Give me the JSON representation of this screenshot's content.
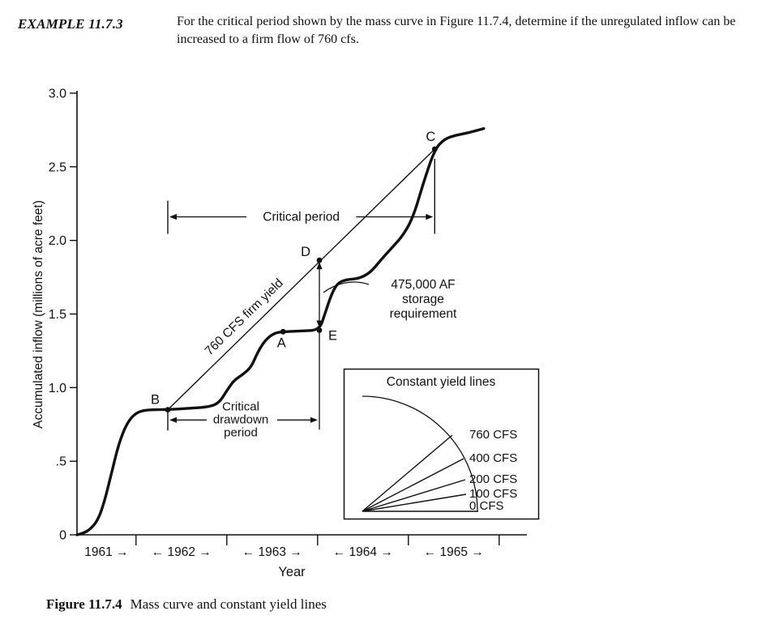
{
  "page": {
    "background": "#ffffff",
    "ink": "#111111"
  },
  "example": {
    "label": "EXAMPLE 11.7.3",
    "text": "For the critical period shown by the mass curve in Figure 11.7.4, determine if the unregulated inflow can be increased to a firm flow of 760 cfs."
  },
  "figure_caption": {
    "label": "Figure 11.7.4",
    "text": "Mass curve and constant yield lines"
  },
  "chart_data": {
    "type": "line",
    "title": "Mass curve and constant yield lines",
    "xlabel": "Year",
    "ylabel": "Accumulated inflow (millions of acre feet)",
    "ylim": [
      0,
      3.0
    ],
    "x_years": [
      "1961",
      "1962",
      "1963",
      "1964",
      "1965"
    ],
    "x_axis_arrow_left": "←",
    "x_axis_arrow_right": "→",
    "yticks": {
      "values": [
        0,
        0.5,
        1.0,
        1.5,
        2.0,
        2.5,
        3.0
      ],
      "labels": [
        "0",
        ".5",
        "1.0",
        "1.5",
        "2.0",
        "2.5",
        "3.0"
      ]
    },
    "mass_curve_series": {
      "name": "Accumulated inflow mass curve",
      "units": "millions of acre feet",
      "points": [
        [
          1961.35,
          0.0
        ],
        [
          1961.42,
          0.01
        ],
        [
          1961.5,
          0.04
        ],
        [
          1961.58,
          0.1
        ],
        [
          1961.65,
          0.22
        ],
        [
          1961.73,
          0.42
        ],
        [
          1961.81,
          0.62
        ],
        [
          1961.9,
          0.76
        ],
        [
          1962.0,
          0.83
        ],
        [
          1962.12,
          0.85
        ],
        [
          1962.35,
          0.85
        ],
        [
          1962.6,
          0.86
        ],
        [
          1962.82,
          0.87
        ],
        [
          1962.92,
          0.9
        ],
        [
          1963.0,
          0.98
        ],
        [
          1963.08,
          1.05
        ],
        [
          1963.18,
          1.09
        ],
        [
          1963.27,
          1.14
        ],
        [
          1963.34,
          1.24
        ],
        [
          1963.42,
          1.32
        ],
        [
          1963.52,
          1.37
        ],
        [
          1963.62,
          1.38
        ],
        [
          1963.82,
          1.385
        ],
        [
          1964.02,
          1.39
        ],
        [
          1964.08,
          1.5
        ],
        [
          1964.15,
          1.63
        ],
        [
          1964.22,
          1.71
        ],
        [
          1964.32,
          1.735
        ],
        [
          1964.45,
          1.74
        ],
        [
          1964.58,
          1.78
        ],
        [
          1964.7,
          1.87
        ],
        [
          1964.82,
          1.95
        ],
        [
          1964.95,
          2.04
        ],
        [
          1965.06,
          2.17
        ],
        [
          1965.16,
          2.38
        ],
        [
          1965.29,
          2.62
        ],
        [
          1965.4,
          2.69
        ],
        [
          1965.52,
          2.715
        ],
        [
          1965.66,
          2.73
        ],
        [
          1965.83,
          2.76
        ]
      ]
    },
    "key_points": [
      {
        "name": "B",
        "year": 1962.35,
        "value": 0.85
      },
      {
        "name": "A",
        "year": 1963.62,
        "value": 1.38
      },
      {
        "name": "E",
        "year": 1964.02,
        "value": 1.39
      },
      {
        "name": "D",
        "year": 1964.02,
        "value": 1.865
      },
      {
        "name": "C",
        "year": 1965.29,
        "value": 2.62
      }
    ],
    "yield_line": {
      "label": "760 CFS firm yield",
      "from_point": "B",
      "to_point": "C"
    },
    "annotations": {
      "critical_period": {
        "label": "Critical period",
        "from_point": "B",
        "to_point": "C",
        "y_value": 2.16
      },
      "critical_drawdown": {
        "label_lines": [
          "Critical",
          "drawdown",
          "period"
        ],
        "from_point": "B",
        "to_point": "E",
        "y_value": 0.78
      },
      "storage_requirement": {
        "label_lines": [
          "475,000 AF",
          "storage",
          "requirement"
        ],
        "value_af": 475000,
        "from_point": "E",
        "to_point": "D"
      }
    },
    "inset": {
      "title": "Constant yield lines",
      "yield_lines": [
        {
          "label": "760 CFS",
          "cfs": 760
        },
        {
          "label": "400 CFS",
          "cfs": 400
        },
        {
          "label": "200 CFS",
          "cfs": 200
        },
        {
          "label": "100 CFS",
          "cfs": 100
        },
        {
          "label": "0 CFS",
          "cfs": 0
        }
      ]
    }
  }
}
